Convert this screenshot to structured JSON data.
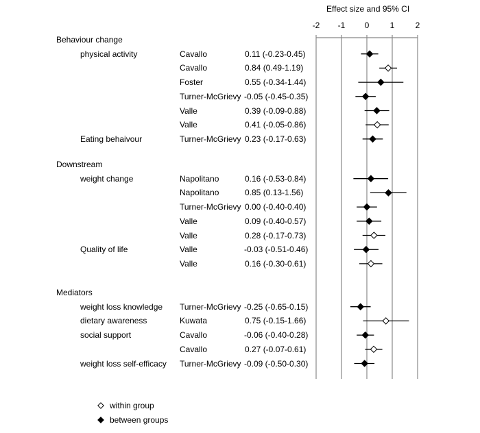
{
  "chart_data": {
    "type": "forest",
    "title": "Effect size and 95% CI",
    "xlabel": "Effect size and 95% CI",
    "ylabel": "",
    "xlim": [
      -2,
      2
    ],
    "x_ticks": [
      "-2",
      "-1",
      "0",
      "1",
      "2"
    ],
    "x_tick_values": [
      -2,
      -1,
      0,
      1,
      2
    ],
    "grid": true,
    "legend": {
      "placement": "bottom-left",
      "entries": [
        {
          "label": "within group",
          "marker": "hollow-diamond"
        },
        {
          "label": "between groups",
          "marker": "filled-diamond"
        }
      ]
    },
    "sections": [
      {
        "name": "Behaviour change",
        "rows": [
          {
            "outcome": "physical activity",
            "study": "Cavallo",
            "label": "0.11 (-0.23-0.45)",
            "effect": 0.11,
            "lower": -0.23,
            "upper": 0.45,
            "type": "between"
          },
          {
            "outcome": "",
            "study": "Cavallo",
            "label": "0.84 (0.49-1.19)",
            "effect": 0.84,
            "lower": 0.49,
            "upper": 1.19,
            "type": "within"
          },
          {
            "outcome": "",
            "study": "Foster",
            "label": "0.55 (-0.34-1.44)",
            "effect": 0.55,
            "lower": -0.34,
            "upper": 1.44,
            "type": "between"
          },
          {
            "outcome": "",
            "study": "Turner-McGrievy",
            "label": "-0.05 (-0.45-0.35)",
            "effect": -0.05,
            "lower": -0.45,
            "upper": 0.35,
            "type": "between"
          },
          {
            "outcome": "",
            "study": "Valle",
            "label": "0.39 (-0.09-0.88)",
            "effect": 0.39,
            "lower": -0.09,
            "upper": 0.88,
            "type": "between"
          },
          {
            "outcome": "",
            "study": "Valle",
            "label": "0.41 (-0.05-0.86)",
            "effect": 0.41,
            "lower": -0.05,
            "upper": 0.86,
            "type": "within"
          },
          {
            "outcome": "Eating behaivour",
            "study": "Turner-McGrievy",
            "label": "0.23 (-0.17-0.63)",
            "effect": 0.23,
            "lower": -0.17,
            "upper": 0.63,
            "type": "between"
          }
        ]
      },
      {
        "name": "Downstream",
        "rows": [
          {
            "outcome": "weight change",
            "study": "Napolitano",
            "label": "0.16 (-0.53-0.84)",
            "effect": 0.16,
            "lower": -0.53,
            "upper": 0.84,
            "type": "between"
          },
          {
            "outcome": "",
            "study": "Napolitano",
            "label": "0.85 (0.13-1.56)",
            "effect": 0.85,
            "lower": 0.13,
            "upper": 1.56,
            "type": "between"
          },
          {
            "outcome": "",
            "study": "Turner-McGrievy",
            "label": "0.00 (-0.40-0.40)",
            "effect": 0.0,
            "lower": -0.4,
            "upper": 0.4,
            "type": "between"
          },
          {
            "outcome": "",
            "study": "Valle",
            "label": "0.09 (-0.40-0.57)",
            "effect": 0.09,
            "lower": -0.4,
            "upper": 0.57,
            "type": "between"
          },
          {
            "outcome": "",
            "study": "Valle",
            "label": "0.28 (-0.17-0.73)",
            "effect": 0.28,
            "lower": -0.17,
            "upper": 0.73,
            "type": "within"
          },
          {
            "outcome": "Quality of life",
            "study": "Valle",
            "label": "-0.03 (-0.51-0.46)",
            "effect": -0.03,
            "lower": -0.51,
            "upper": 0.46,
            "type": "between"
          },
          {
            "outcome": "",
            "study": "Valle",
            "label": "0.16 (-0.30-0.61)",
            "effect": 0.16,
            "lower": -0.3,
            "upper": 0.61,
            "type": "within"
          }
        ]
      },
      {
        "name": "Mediators",
        "rows": [
          {
            "outcome": "weight loss knowledge",
            "study": "Turner-McGrievy",
            "label": "-0.25 (-0.65-0.15)",
            "effect": -0.25,
            "lower": -0.65,
            "upper": 0.15,
            "type": "between"
          },
          {
            "outcome": "dietary awareness",
            "study": "Kuwata",
            "label": "0.75 (-0.15-1.66)",
            "effect": 0.75,
            "lower": -0.15,
            "upper": 1.66,
            "type": "within"
          },
          {
            "outcome": "social support",
            "study": "Cavallo",
            "label": "-0.06 (-0.40-0.28)",
            "effect": -0.06,
            "lower": -0.4,
            "upper": 0.28,
            "type": "between"
          },
          {
            "outcome": "",
            "study": "Cavallo",
            "label": "0.27 (-0.07-0.61)",
            "effect": 0.27,
            "lower": -0.07,
            "upper": 0.61,
            "type": "within"
          },
          {
            "outcome": "weight loss self-efficacy",
            "study": "Turner-McGrievy",
            "label": "-0.09 (-0.50-0.30)",
            "effect": -0.09,
            "lower": -0.5,
            "upper": 0.3,
            "type": "between"
          }
        ]
      }
    ]
  }
}
